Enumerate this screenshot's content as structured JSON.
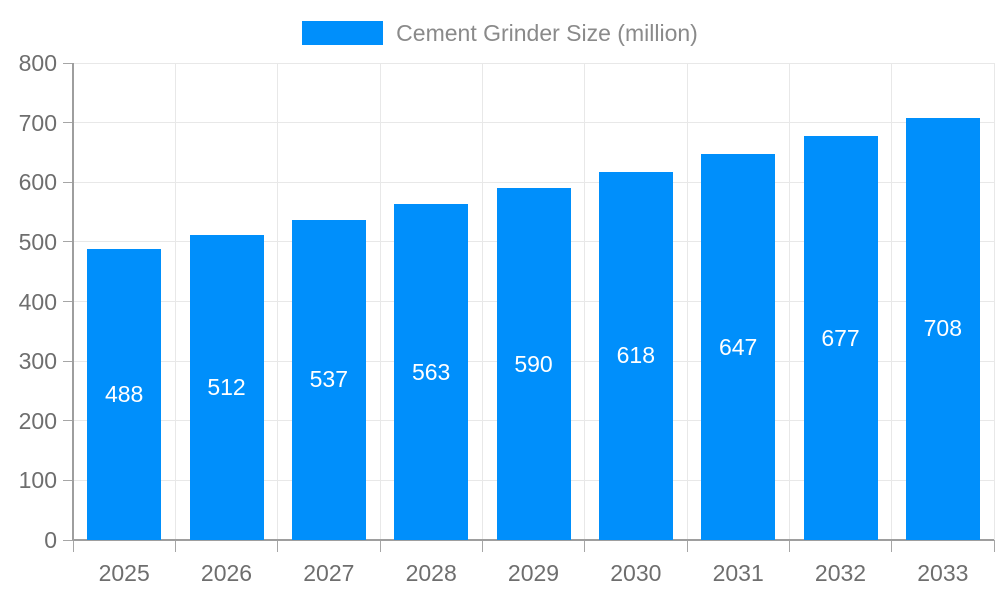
{
  "chart_data": {
    "type": "bar",
    "title": "",
    "legend_label": "Cement Grinder Size (million)",
    "legend_position": "top",
    "categories": [
      "2025",
      "2026",
      "2027",
      "2028",
      "2029",
      "2030",
      "2031",
      "2032",
      "2033"
    ],
    "values": [
      488,
      512,
      537,
      563,
      590,
      618,
      647,
      677,
      708
    ],
    "series": [
      {
        "name": "Cement Grinder Size (million)",
        "values": [
          488,
          512,
          537,
          563,
          590,
          618,
          647,
          677,
          708
        ]
      }
    ],
    "xlabel": "",
    "ylabel": "",
    "ylim": [
      0,
      800
    ],
    "ytick_step": 100,
    "ytick_labels": [
      "0",
      "100",
      "200",
      "300",
      "400",
      "500",
      "600",
      "700",
      "800"
    ],
    "grid": true,
    "bar_value_labels_shown": true,
    "colors": {
      "bar": "#008FFB",
      "bar_label": "#FFFFFF",
      "grid": "#E8E8E8",
      "axis_line": "#9E9E9E",
      "tick": "#A6A6A6",
      "tick_label": "#6E6E6E",
      "legend_text": "#8A8A8A"
    }
  }
}
